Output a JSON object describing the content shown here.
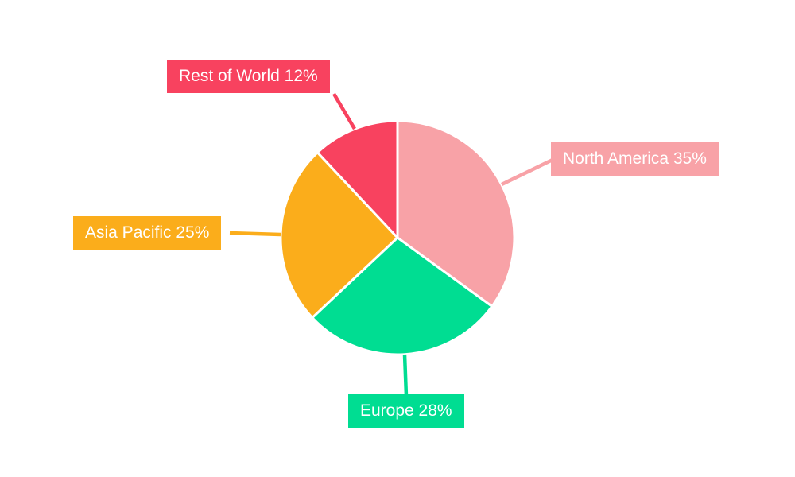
{
  "page": {
    "background": "#FFFFFF"
  },
  "chart_data": {
    "type": "pie",
    "title": "",
    "unit": "%",
    "total": 100,
    "start_angle_deg": 0,
    "direction": "clockwise",
    "legend_position": "none",
    "labels_as_callouts": true,
    "callout_text_color": "#FFFFFF",
    "slice_separator_color": "#FFFFFF",
    "slices": [
      {
        "label": "North America",
        "value": 35,
        "callout_text": "North America 35%",
        "color": "#F8A2A7"
      },
      {
        "label": "Europe",
        "value": 28,
        "callout_text": "Europe 28%",
        "color": "#00DD92"
      },
      {
        "label": "Asia Pacific",
        "value": 25,
        "callout_text": "Asia Pacific 25%",
        "color": "#FBAD1B"
      },
      {
        "label": "Rest of World",
        "value": 12,
        "callout_text": "Rest of World 12%",
        "color": "#F8425F"
      }
    ]
  }
}
